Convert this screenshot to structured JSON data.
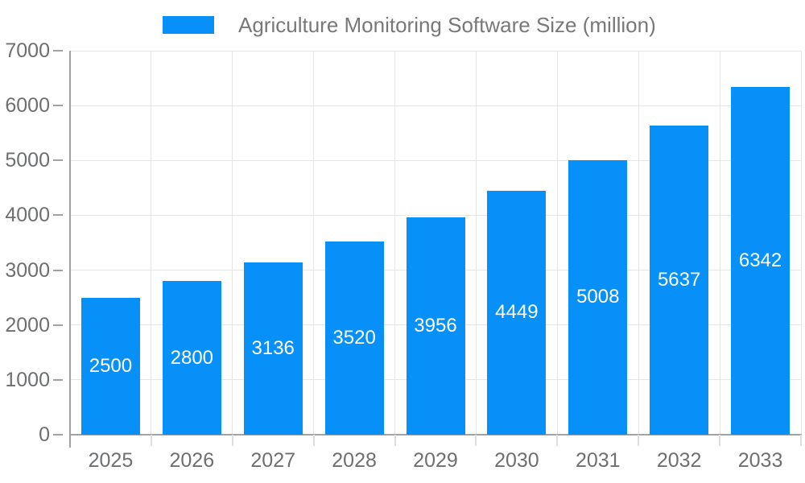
{
  "chart_data": {
    "type": "bar",
    "title": "Agriculture Monitoring Software Size (million)",
    "categories": [
      "2025",
      "2026",
      "2027",
      "2028",
      "2029",
      "2030",
      "2031",
      "2032",
      "2033"
    ],
    "values": [
      2500,
      2800,
      3136,
      3520,
      3956,
      4449,
      5008,
      5637,
      6342
    ],
    "xlabel": "",
    "ylabel": "",
    "ylim": [
      0,
      7000
    ],
    "ytick_step": 1000,
    "ytick_labels": [
      "0",
      "1000",
      "2000",
      "3000",
      "4000",
      "5000",
      "6000",
      "7000"
    ],
    "grid": true,
    "legend_position": "top",
    "bar_labels_inside": true
  },
  "colors": {
    "bar": "#0690F8",
    "bar_label": "#ffffff",
    "title": "#76787a",
    "axis_label": "#6d6f71",
    "gridline": "#e6e6e6",
    "axis_line": "#a3a3a3",
    "x_tick_mark": "#dedede",
    "background": "#ffffff"
  }
}
